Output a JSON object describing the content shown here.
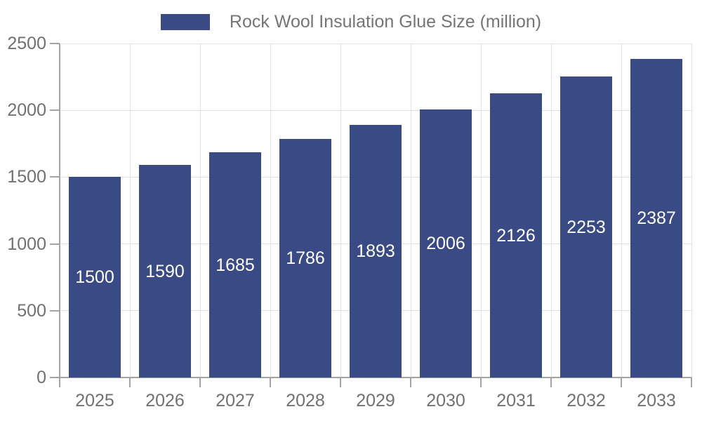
{
  "legend": {
    "label": "Rock Wool Insulation Glue Size (million)"
  },
  "chart_data": {
    "type": "bar",
    "title": "Rock Wool Insulation Glue Size (million)",
    "categories": [
      "2025",
      "2026",
      "2027",
      "2028",
      "2029",
      "2030",
      "2031",
      "2032",
      "2033"
    ],
    "series": [
      {
        "name": "Rock Wool Insulation Glue Size (million)",
        "values": [
          1500,
          1590,
          1685,
          1786,
          1893,
          2006,
          2126,
          2253,
          2387
        ]
      }
    ],
    "xlabel": "",
    "ylabel": "",
    "ylim": [
      0,
      2500
    ],
    "yticks": [
      0,
      500,
      1000,
      1500,
      2000,
      2500
    ],
    "grid": true,
    "legend_position": "top-center",
    "value_labels": "inside-center"
  },
  "colors": {
    "bar": "#394A85",
    "value_label": "#ffffff",
    "grid_line": "#e2e2e2",
    "axis_line": "#a3a3a3",
    "tick_label": "#717171",
    "legend_text": "#757575",
    "background": "#ffffff"
  }
}
